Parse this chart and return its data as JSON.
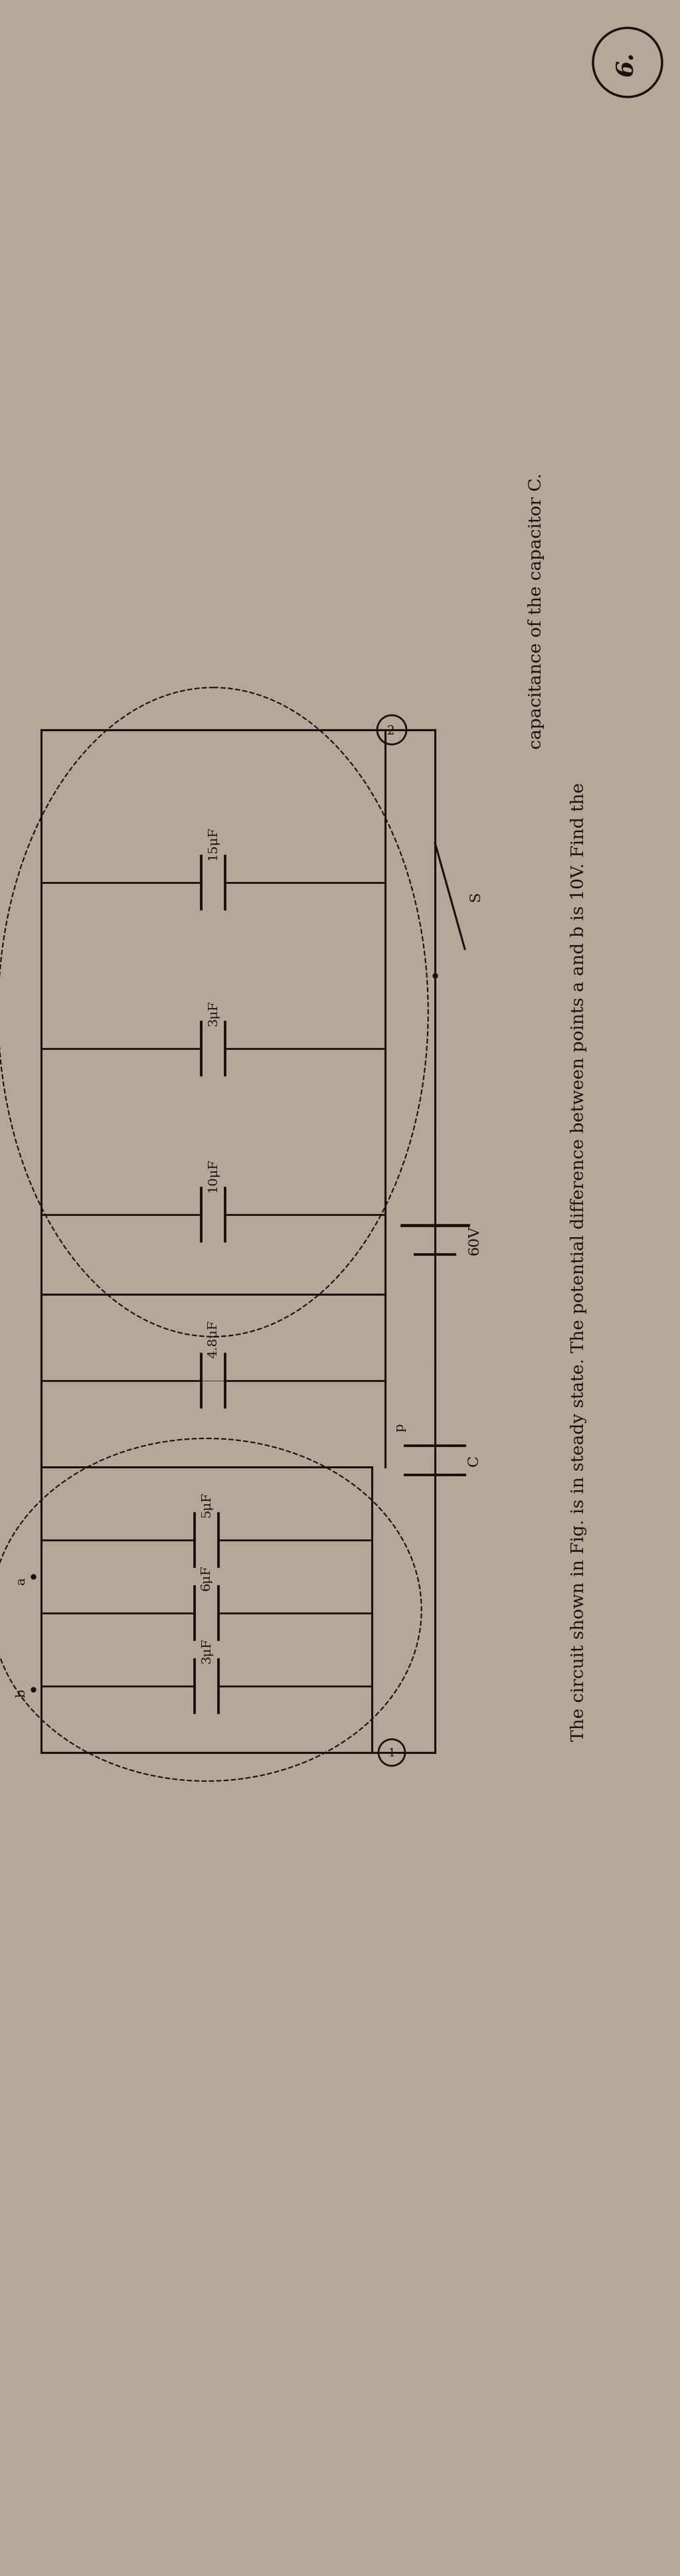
{
  "bg_color": "#b5a899",
  "text_color": "#1a1008",
  "fig_width": 10.24,
  "fig_height": 38.8,
  "question_number": "6.",
  "text_line1": "The circuit shown in Fig. is in steady state. The potential difference between points a and b is 10V. Find the",
  "text_line2": "capacitance of the capacitor C.",
  "circuit": {
    "left_caps": [
      "15μF",
      "3μF",
      "10μF"
    ],
    "middle_cap": "4.8μF",
    "right_caps": [
      "5μF",
      "6μF",
      "3μF"
    ],
    "voltage": "60V",
    "switch": "S",
    "cap_c": "C",
    "node2": "2",
    "node1": "1",
    "pt_p": "p",
    "pt_a": "a",
    "pt_b": "b"
  }
}
